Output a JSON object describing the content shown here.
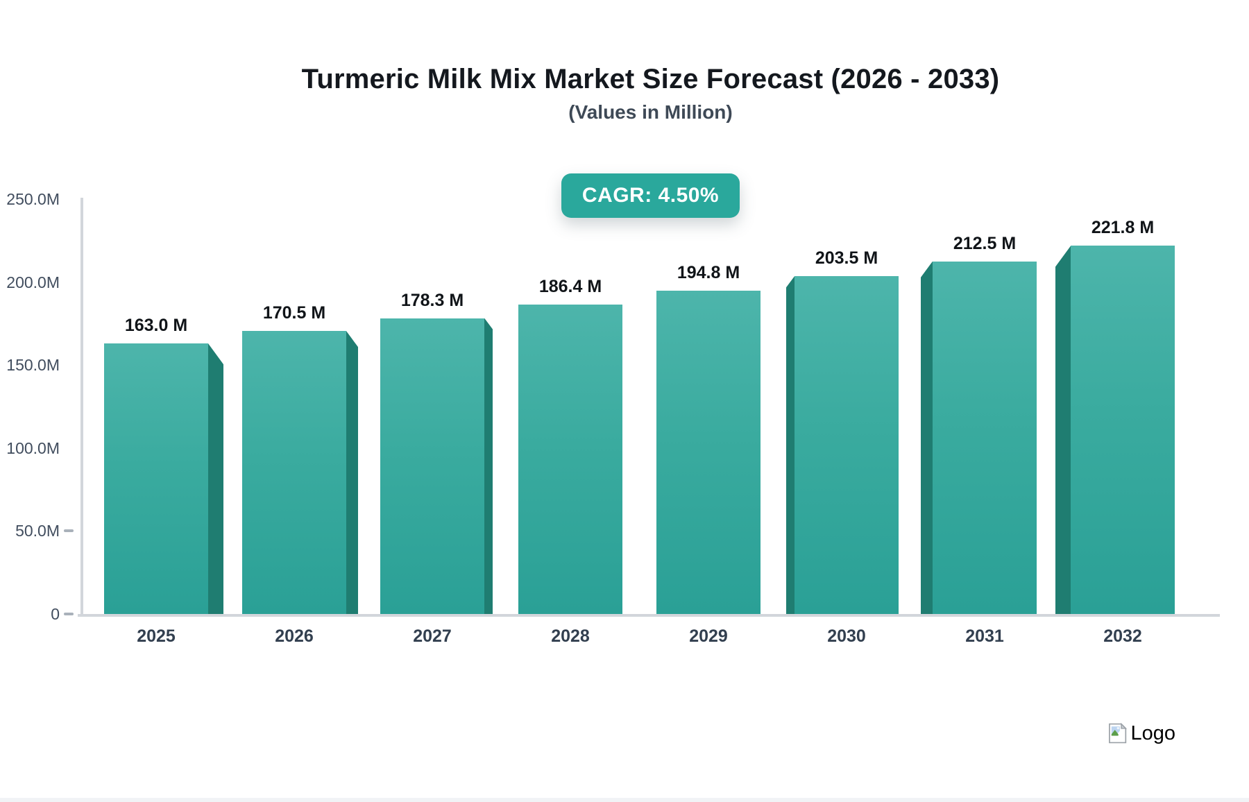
{
  "header": {
    "title": "Turmeric Milk Mix Market Size Forecast (2026 - 2033)",
    "subtitle": "(Values in Million)",
    "cagr_badge": "CAGR: 4.50%"
  },
  "chart_data": {
    "type": "bar",
    "title": "Turmeric Milk Mix Market Size Forecast (2026 - 2033)",
    "subtitle": "(Values in Million)",
    "unit": "Million",
    "cagr": "4.50%",
    "categories": [
      "2025",
      "2026",
      "2027",
      "2028",
      "2029",
      "2030",
      "2031",
      "2032"
    ],
    "values": [
      163.0,
      170.5,
      178.3,
      186.4,
      194.8,
      203.5,
      212.5,
      221.8
    ],
    "value_labels": [
      "163.0 M",
      "170.5 M",
      "178.3 M",
      "186.4 M",
      "194.8 M",
      "203.5 M",
      "212.5 M",
      "221.8 M"
    ],
    "ylim": [
      0,
      250
    ],
    "y_ticks": [
      {
        "label": "250.0M",
        "value": 250,
        "dash": false
      },
      {
        "label": "200.0M",
        "value": 200,
        "dash": false
      },
      {
        "label": "150.0M",
        "value": 150,
        "dash": false
      },
      {
        "label": "100.0M",
        "value": 100,
        "dash": false
      },
      {
        "label": "50.0M",
        "value": 50,
        "dash": true
      },
      {
        "label": "0",
        "value": 0,
        "dash": true
      }
    ],
    "grid": false,
    "legend_position": "none",
    "bar_color_top": "#4db5ab",
    "bar_color_bottom": "#2aa096",
    "bar_side_color": "#1f7d71",
    "badge_color": "#2aa89c"
  },
  "footer": {
    "logo_alt": "Logo"
  }
}
